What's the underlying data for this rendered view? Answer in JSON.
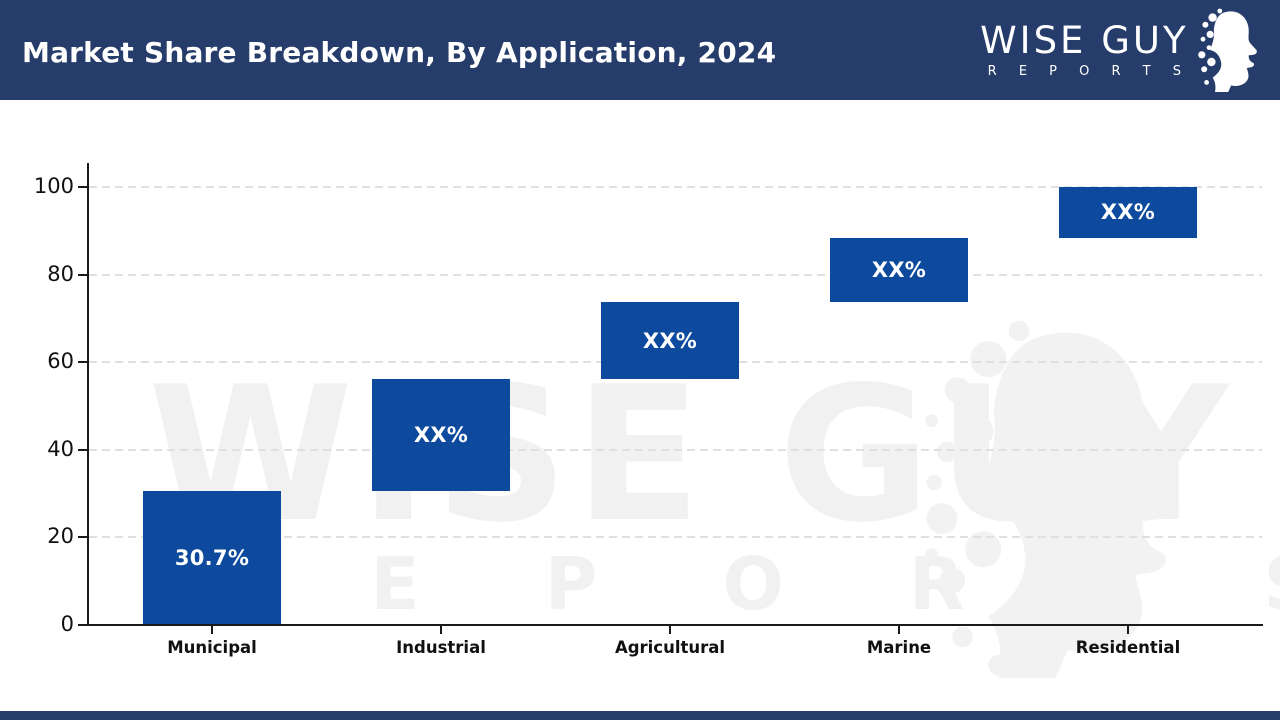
{
  "header": {
    "title": "Market Share Breakdown, By Application, 2024",
    "bg_color": "#263c6a",
    "logo": {
      "line1": "WISE GUY",
      "line2": "R E P O R T S"
    }
  },
  "watermark": {
    "line1": "WISE GUY",
    "line2": "R E P O R T S"
  },
  "footer": {
    "bg_color": "#263c6a"
  },
  "chart_data": {
    "type": "bar",
    "subtype": "waterfall",
    "title": "Market Share Breakdown, By Application, 2024",
    "categories": [
      "Municipal",
      "Industrial",
      "Agricultural",
      "Marine",
      "Residential"
    ],
    "series": [
      {
        "name": "Market share (%)",
        "bases": [
          0,
          30.7,
          56.2,
          73.7,
          88.4
        ],
        "values": [
          30.7,
          25.5,
          17.5,
          14.7,
          11.6
        ]
      }
    ],
    "bar_labels": [
      "30.7%",
      "XX%",
      "XX%",
      "XX%",
      "XX%"
    ],
    "xlabel": "",
    "ylabel": "",
    "yticks": [
      0,
      20,
      40,
      60,
      80,
      100
    ],
    "ylim": [
      0,
      105
    ],
    "grid": "horizontal-dashed",
    "legend": "none",
    "bar_color": "#0d4a9e",
    "bar_label_color": "#ffffff",
    "axis_color": "#1a1a1a",
    "grid_color": "#e0e0e0"
  }
}
